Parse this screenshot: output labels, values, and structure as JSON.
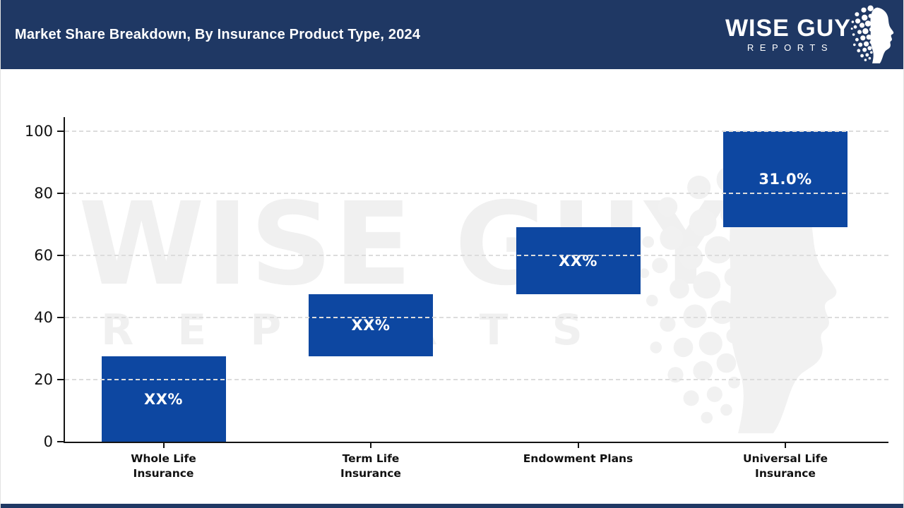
{
  "header": {
    "title": "Market Share Breakdown, By Insurance Product Type, 2024",
    "logo": {
      "brand_line1": "WISE GUY",
      "brand_line2": "REPORTS"
    }
  },
  "watermark": {
    "line1": "WISE GUY",
    "line2": "REPORTS"
  },
  "chart_data": {
    "type": "bar",
    "variant": "waterfall-floating-bars",
    "title": "Market Share Breakdown, By Insurance Product Type, 2024",
    "xlabel": "",
    "ylabel": "",
    "ylim": [
      0,
      104
    ],
    "yticks": [
      0,
      20,
      40,
      60,
      80,
      100
    ],
    "grid": "horizontal-dashed-above-bars",
    "legend": "none",
    "colors": {
      "bar": "#0d47a1",
      "bar_label": "#ffffff",
      "grid": "#dcdcdc",
      "header_bg": "#1f3864",
      "watermark": "#f0f0f0",
      "axis": "#141414"
    },
    "bars": [
      {
        "category": [
          "Whole Life",
          "Insurance"
        ],
        "label": "XX%",
        "start": 0,
        "end": 27.5,
        "value": 27.5
      },
      {
        "category": [
          "Term Life",
          "Insurance"
        ],
        "label": "XX%",
        "start": 27.5,
        "end": 47.5,
        "value": 20.0
      },
      {
        "category": [
          "Endowment Plans"
        ],
        "label": "XX%",
        "start": 47.5,
        "end": 69.0,
        "value": 21.5
      },
      {
        "category": [
          "Universal Life",
          "Insurance"
        ],
        "label": "31.0%",
        "start": 69.0,
        "end": 100.0,
        "value": 31.0
      }
    ]
  }
}
